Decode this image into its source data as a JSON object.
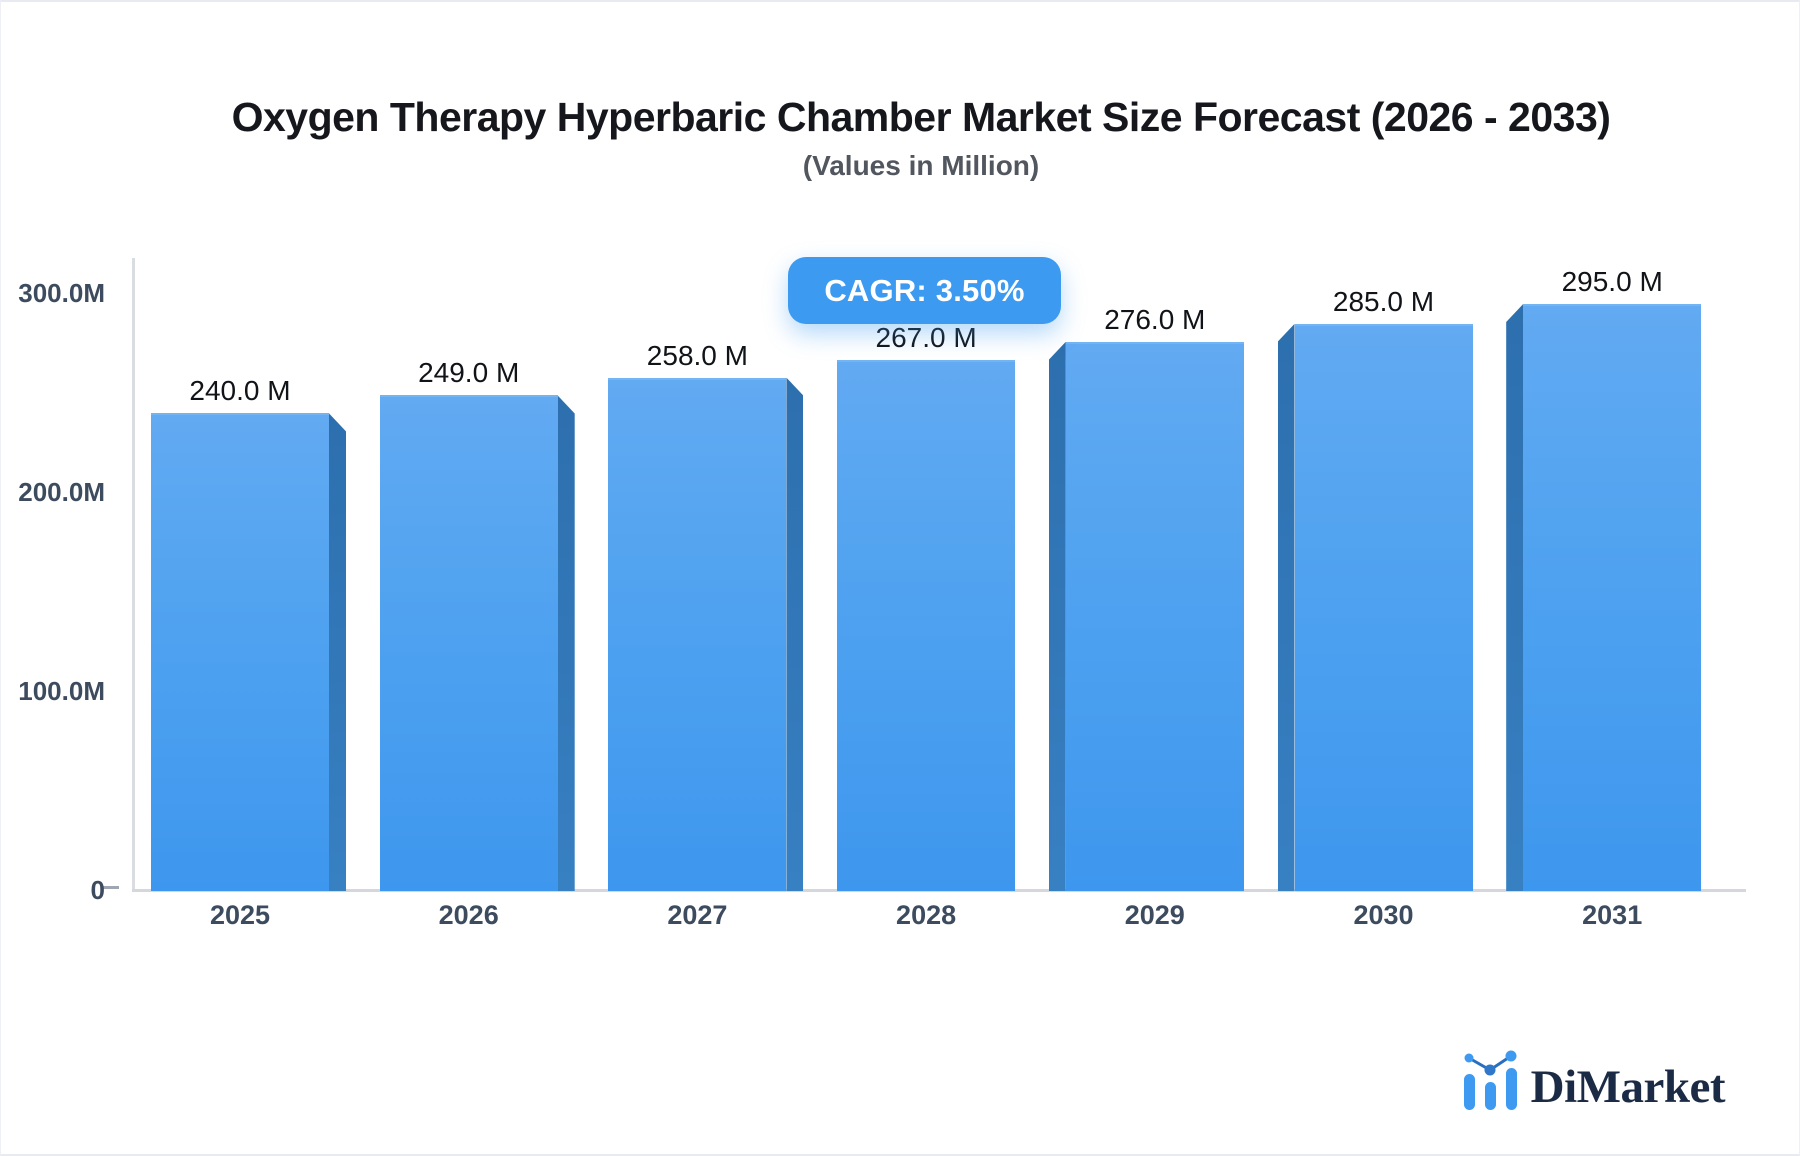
{
  "header": {
    "title": "Oxygen Therapy Hyperbaric Chamber Market Size Forecast (2026 - 2033)",
    "subtitle": "(Values in Million)"
  },
  "badge": {
    "label": "CAGR: 3.50%",
    "background": "#3c9af0"
  },
  "chart_data": {
    "type": "bar",
    "title": "Oxygen Therapy Hyperbaric Chamber Market Size Forecast (2026 - 2033)",
    "subtitle": "(Values in Million)",
    "categories": [
      "2025",
      "2026",
      "2027",
      "2028",
      "2029",
      "2030",
      "2031"
    ],
    "values": [
      240,
      249,
      258,
      267,
      276,
      285,
      295
    ],
    "value_labels": [
      "240.0 M",
      "249.0 M",
      "258.0 M",
      "267.0 M",
      "276.0 M",
      "285.0 M",
      "295.0 M"
    ],
    "unit": "Million",
    "yticks": [
      {
        "label": "300.0M",
        "value": 300
      },
      {
        "label": "200.0M",
        "value": 200
      },
      {
        "label": "100.0M",
        "value": 100
      },
      {
        "label": "0",
        "value": 0
      }
    ],
    "ylim": [
      0,
      318
    ],
    "grid": false,
    "legend": "none",
    "style": "3d-bars",
    "bar_color_top": "#62aaf2",
    "bar_color_bottom": "#3e97ee",
    "bar_side_color": "#2f74b6",
    "axis_color": "#d4d7dc",
    "tick_text_color": "#3d4b5f"
  },
  "logo": {
    "text": "DiMarket",
    "icon": "bar-chart-logo-icon"
  }
}
